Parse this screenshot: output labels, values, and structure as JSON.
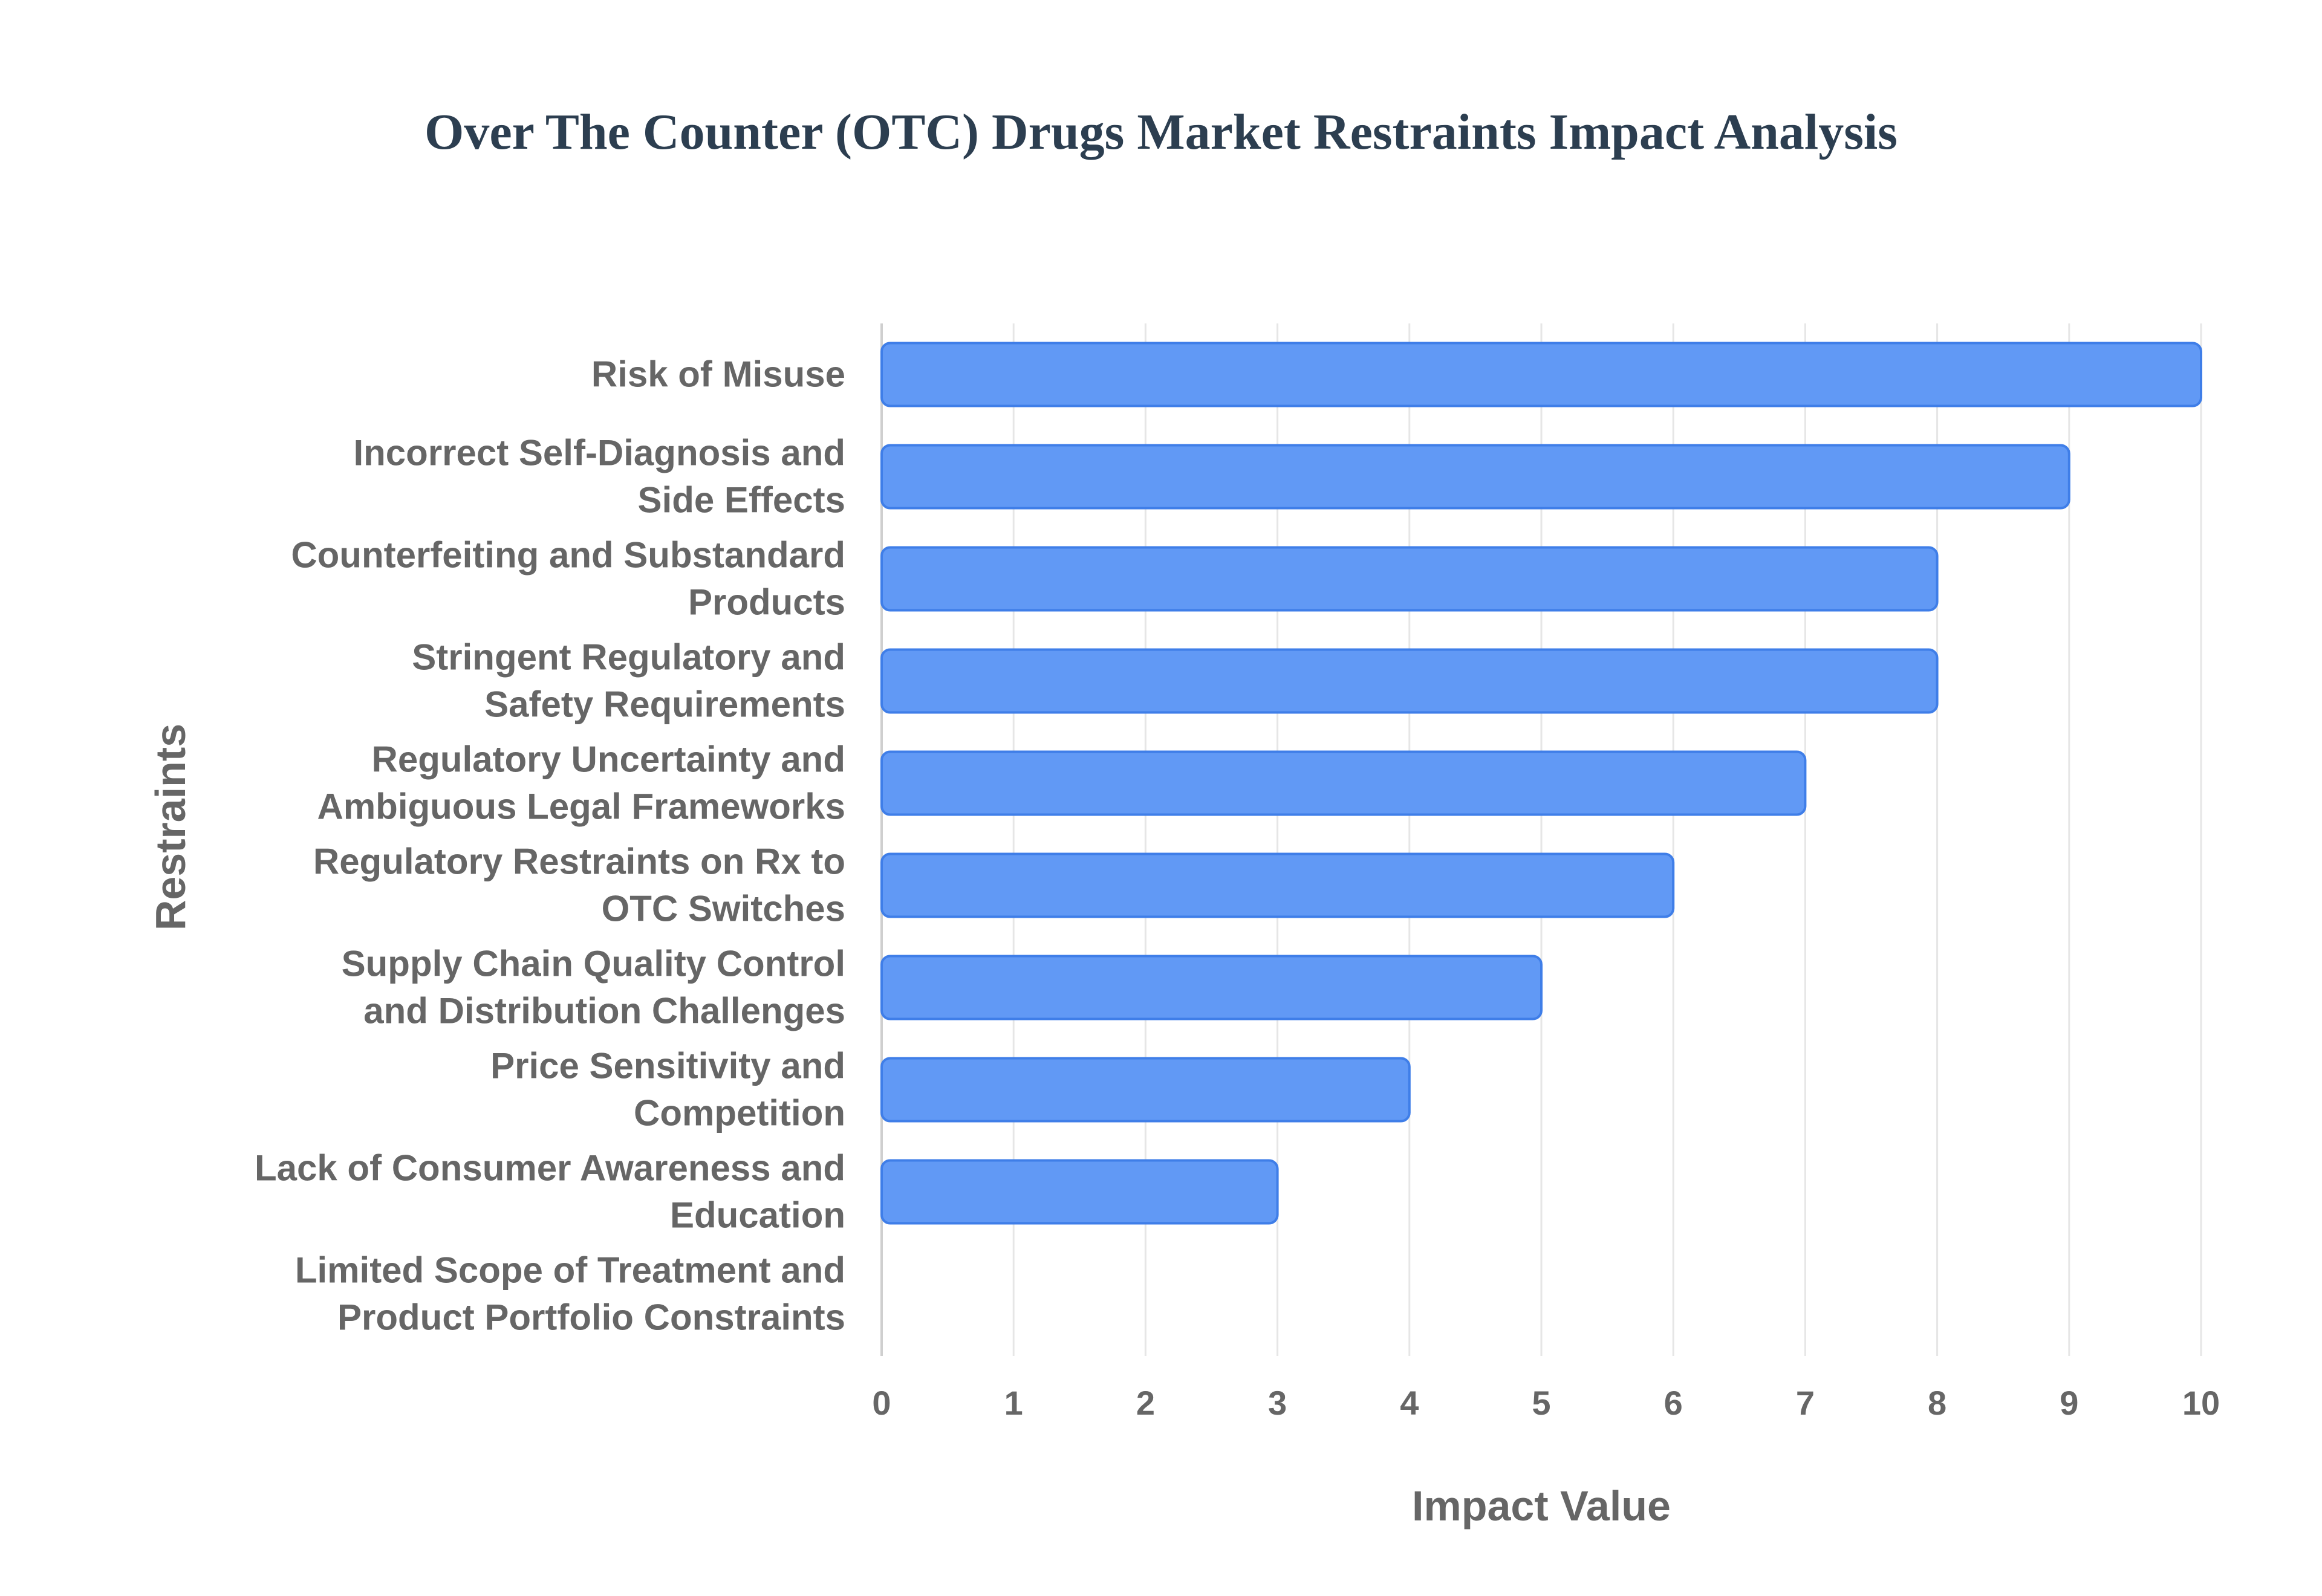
{
  "chart_data": {
    "type": "bar",
    "orientation": "horizontal",
    "title": "Over The Counter (OTC) Drugs Market Restraints Impact Analysis",
    "xlabel": "Impact Value",
    "ylabel": "Restraints",
    "categories": [
      [
        "Risk of Misuse"
      ],
      [
        "Incorrect Self-Diagnosis and",
        "Side Effects"
      ],
      [
        "Counterfeiting and Substandard",
        "Products"
      ],
      [
        "Stringent Regulatory and",
        "Safety Requirements"
      ],
      [
        "Regulatory Uncertainty and",
        "Ambiguous Legal Frameworks"
      ],
      [
        "Regulatory Restraints on Rx to",
        "OTC Switches"
      ],
      [
        "Supply Chain Quality Control",
        "and Distribution Challenges"
      ],
      [
        "Price Sensitivity and",
        "Competition"
      ],
      [
        "Lack of Consumer Awareness and",
        "Education"
      ],
      [
        "Limited Scope of Treatment and",
        "Product Portfolio Constraints"
      ]
    ],
    "values": [
      10,
      9,
      8,
      8,
      7,
      6,
      5,
      4,
      3,
      0
    ],
    "xlim": [
      0,
      10
    ],
    "xticks": [
      "0",
      "1",
      "2",
      "3",
      "4",
      "5",
      "6",
      "7",
      "8",
      "9",
      "10"
    ],
    "grid": true,
    "bar_color": "#6199f5",
    "bar_border_color": "#3f7ee8"
  }
}
